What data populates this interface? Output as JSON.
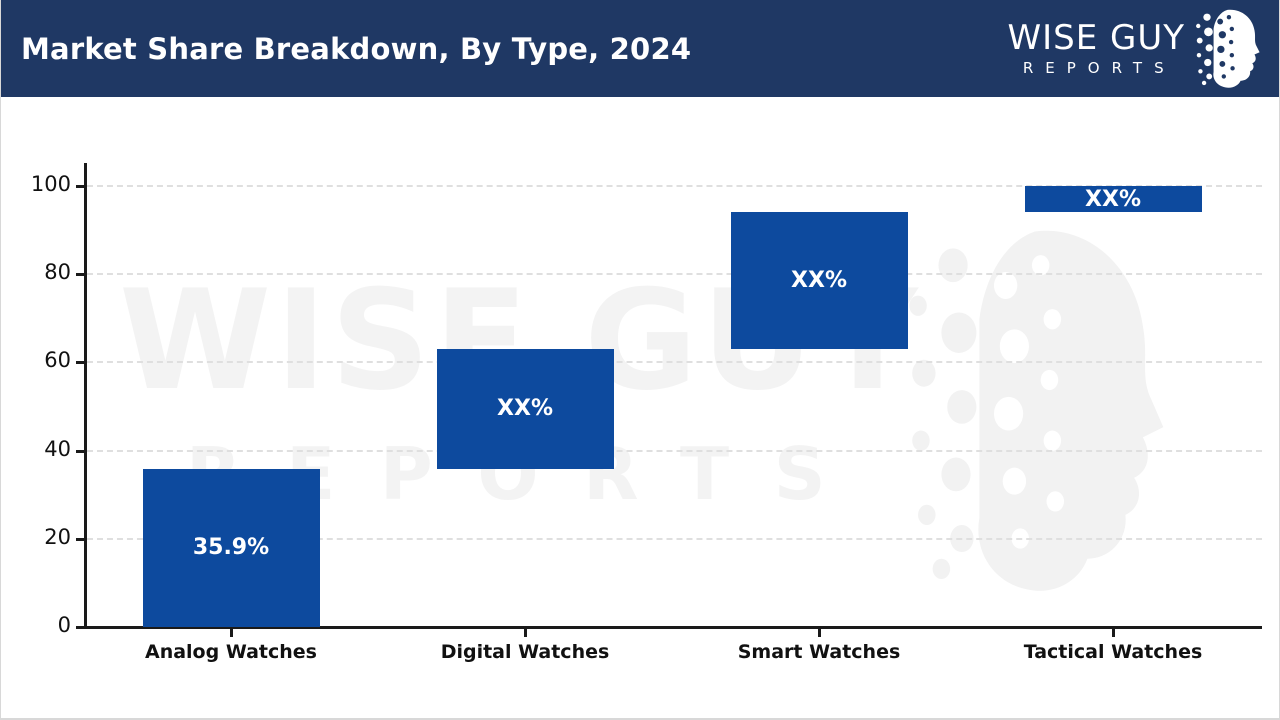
{
  "header": {
    "title": "Market Share Breakdown, By Type, 2024",
    "logo": {
      "wordmark": "WISE GUY",
      "subtext": "REPORTS"
    }
  },
  "watermark": {
    "wordmark": "WISE GUY",
    "subtext": "REPORTS"
  },
  "chart_data": {
    "type": "bar",
    "subtype": "waterfall",
    "title": "Market Share Breakdown, By Type, 2024",
    "categories": [
      "Analog Watches",
      "Digital Watches",
      "Smart Watches",
      "Tactical Watches"
    ],
    "segments": [
      {
        "category": "Analog Watches",
        "start": 0,
        "end": 35.9,
        "label": "35.9%"
      },
      {
        "category": "Digital Watches",
        "start": 35.9,
        "end": 63,
        "label": "XX%"
      },
      {
        "category": "Smart Watches",
        "start": 63,
        "end": 94,
        "label": "XX%"
      },
      {
        "category": "Tactical Watches",
        "start": 94,
        "end": 100,
        "label": "XX%"
      }
    ],
    "yticks": [
      0,
      20,
      40,
      60,
      80,
      100
    ],
    "ylim": [
      0,
      105
    ],
    "grid": true,
    "grid_style": "dashed",
    "legend": false,
    "xlabel": "",
    "ylabel": ""
  },
  "colors": {
    "header_bg": "#1f3864",
    "bar": "#0d4a9e",
    "grid": "#dfdfdf",
    "axis": "#1a1a1a",
    "tick_label": "#111111",
    "value_label": "#ffffff",
    "watermark": "#f3f3f3",
    "page_border": "#d8d8d8"
  }
}
